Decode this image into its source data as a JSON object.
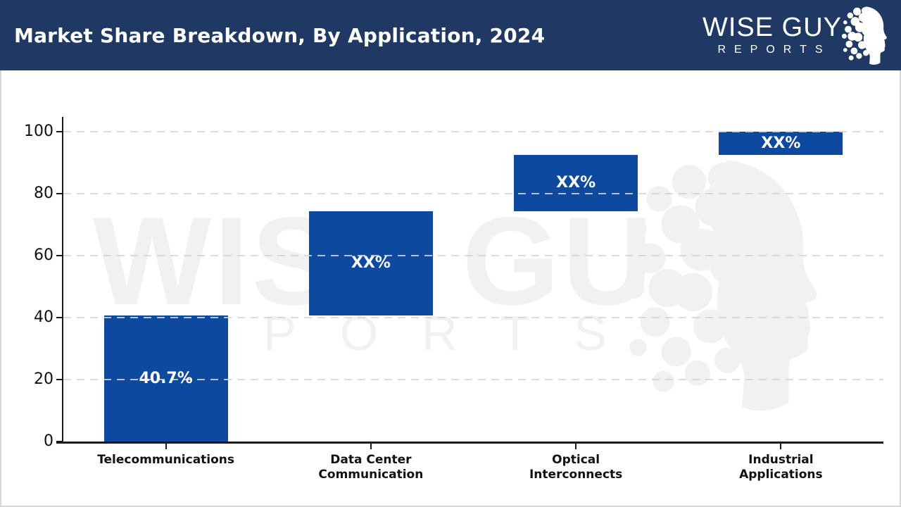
{
  "header": {
    "title": "Market Share Breakdown, By Application, 2024",
    "background_color": "#1f3864",
    "logo": {
      "wordmark": "WISE GUY",
      "subtext": "REPORTS",
      "face_icon": "dotted-head-profile",
      "color": "#ffffff"
    }
  },
  "watermark": {
    "line1": "WISE GU",
    "line2": "PORTS",
    "color": "#f1f1f1"
  },
  "chart_data": {
    "type": "bar",
    "subtype": "waterfall",
    "title": "Market Share Breakdown, By Application, 2024",
    "categories": [
      "Telecommunications",
      "Data Center Communication",
      "Optical Interconnects",
      "Industrial Applications"
    ],
    "bars": [
      {
        "category_lines": [
          "Telecommunications"
        ],
        "start": 0,
        "end": 40.7,
        "value_label": "40.7%"
      },
      {
        "category_lines": [
          "Data Center",
          "Communication"
        ],
        "start": 40.7,
        "end": 74.3,
        "value_label": "XX%"
      },
      {
        "category_lines": [
          "Optical",
          "Interconnects"
        ],
        "start": 74.3,
        "end": 92.6,
        "value_label": "XX%"
      },
      {
        "category_lines": [
          "Industrial",
          "Applications"
        ],
        "start": 92.6,
        "end": 100,
        "value_label": "XX%"
      }
    ],
    "xlabel": "",
    "ylabel": "",
    "ylim": [
      0,
      100
    ],
    "yticks": [
      0,
      20,
      40,
      60,
      80,
      100
    ],
    "grid": "horizontal-dashed",
    "legend": "none",
    "bar_color": "#0d4a9f",
    "value_label_color": "#ffffff",
    "axis_color": "#1a1a1a",
    "gridline_color": "#d5d5d5"
  }
}
